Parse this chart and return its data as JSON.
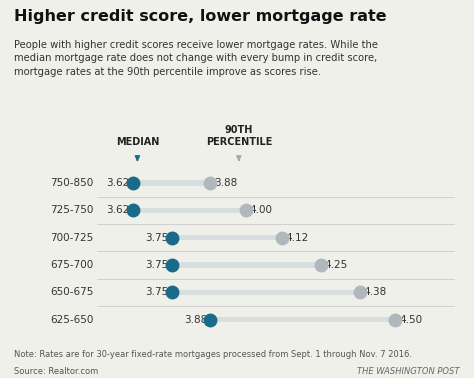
{
  "title": "Higher credit score, lower mortgage rate",
  "subtitle": "People with higher credit scores receive lower mortgage rates. While the\nmedian mortgage rate does not change with every bump in credit score,\nmortgage rates at the 90th percentile improve as scores rise.",
  "note": "Note: Rates are for 30-year fixed-rate mortgages processed from Sept. 1 through Nov. 7 2016.",
  "source_left": "Source: Realtor.com",
  "source_right": "THE WASHINGTON POST",
  "categories": [
    "750-850",
    "725-750",
    "700-725",
    "675-700",
    "650-675",
    "625-650"
  ],
  "median_values": [
    3.62,
    3.62,
    3.75,
    3.75,
    3.75,
    3.88
  ],
  "percentile_90_values": [
    3.88,
    4.0,
    4.12,
    4.25,
    4.38,
    4.5
  ],
  "median_color": "#1a6a8a",
  "percentile_color": "#b0b8be",
  "bar_color": "#d8dde0",
  "median_label": "MEDIAN",
  "percentile_label": "90TH\nPERCENTILE",
  "arrow_median_color": "#1a6a8a",
  "arrow_percentile_color": "#aaaaaa",
  "background_color": "#f0f0eb",
  "x_min": 3.5,
  "x_max": 4.7,
  "dot_size": 100,
  "bar_height": 0.2
}
